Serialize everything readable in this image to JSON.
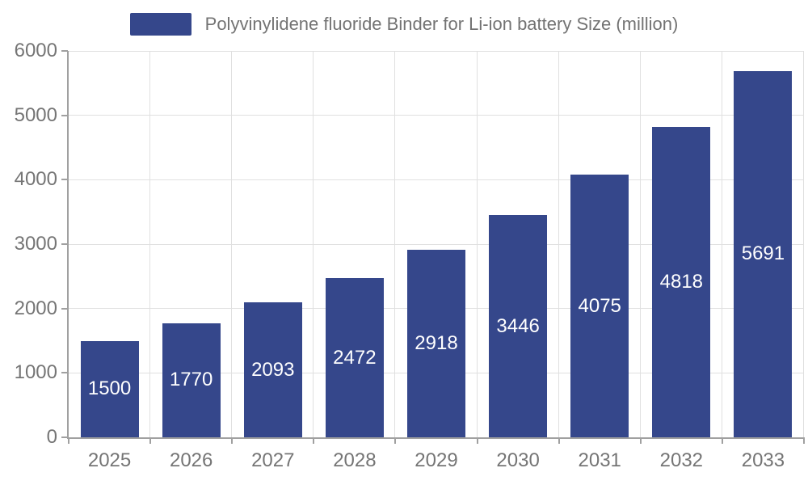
{
  "legend": {
    "label": "Polyvinylidene fluoride Binder for Li-ion battery Size (million)"
  },
  "colors": {
    "bar": "#35478B",
    "legend_text": "#737373",
    "tick_text": "#757575",
    "grid": "#e0e0e0",
    "axis": "#a0a0a0",
    "value_label": "#ffffff",
    "background": "#ffffff"
  },
  "chart_data": {
    "type": "bar",
    "title": "Polyvinylidene fluoride Binder for Li-ion battery Size (million)",
    "series_name": "Polyvinylidene fluoride Binder for Li-ion battery Size (million)",
    "categories": [
      "2025",
      "2026",
      "2027",
      "2028",
      "2029",
      "2030",
      "2031",
      "2032",
      "2033"
    ],
    "values": [
      1500,
      1770,
      2093,
      2472,
      2918,
      3446,
      4075,
      4818,
      5691
    ],
    "xlabel": "",
    "ylabel": "",
    "ylim": [
      0,
      6000
    ],
    "yticks": [
      0,
      1000,
      2000,
      3000,
      4000,
      5000,
      6000
    ],
    "grid": true,
    "legend_position": "top-center",
    "value_label_position": "inside-center"
  }
}
